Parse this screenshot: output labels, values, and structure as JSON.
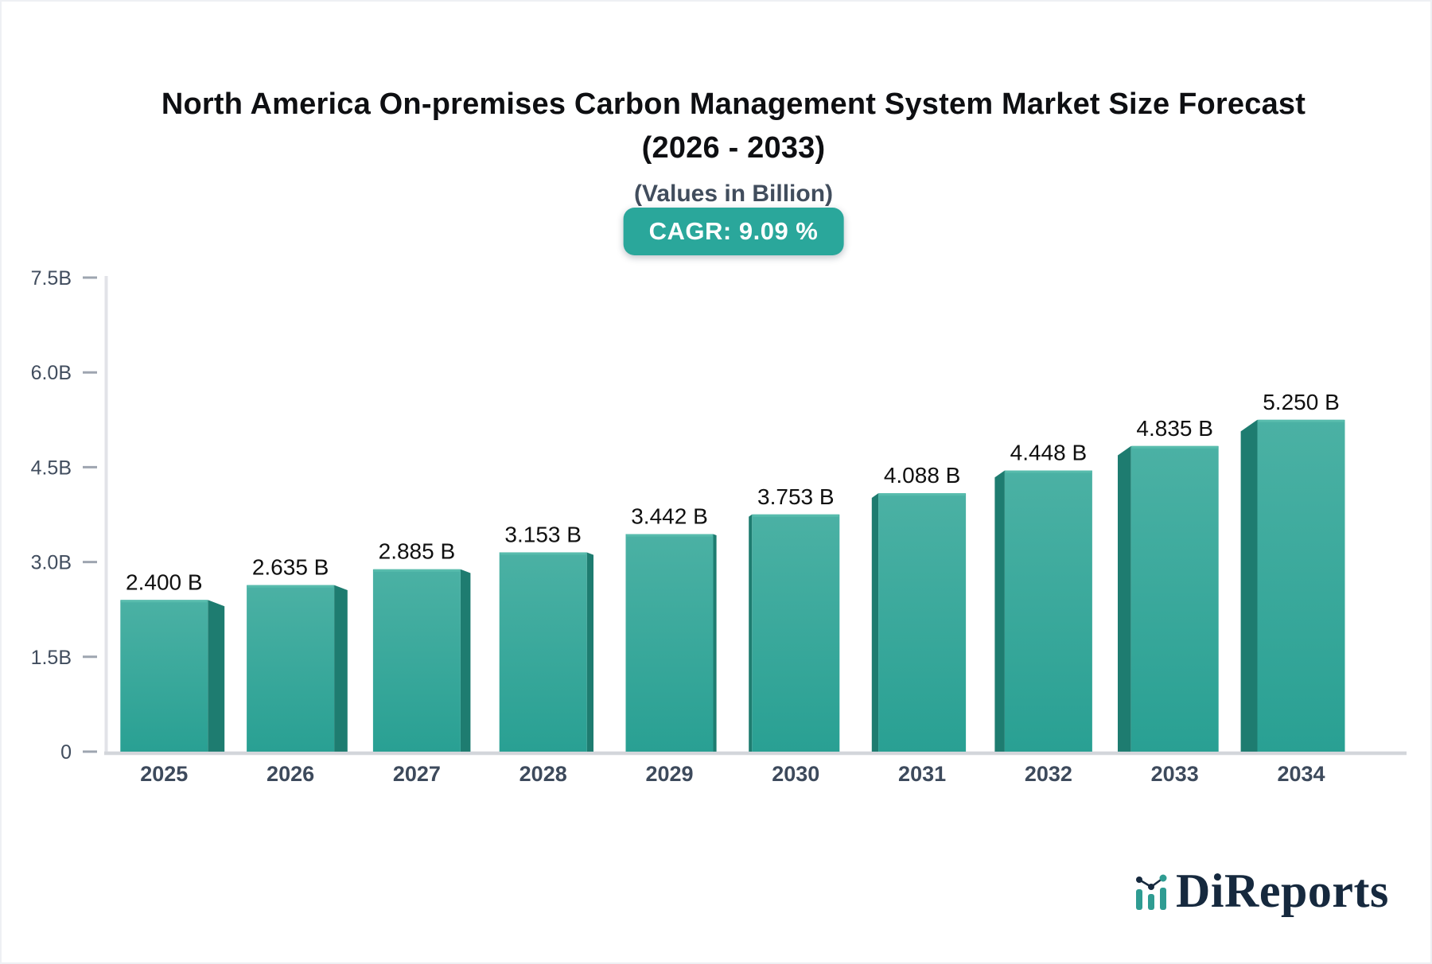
{
  "header": {
    "title_line1": "North America On-premises Carbon Management System Market Size Forecast",
    "title_line2": "(2026 - 2033)",
    "subtitle": "(Values in Billion)",
    "cagr_badge": "CAGR: 9.09 %"
  },
  "chart_data": {
    "type": "bar",
    "title": "North America On-premises Carbon Management System Market Size Forecast (2026 - 2033)",
    "subtitle": "(Values in Billion)",
    "categories": [
      "2025",
      "2026",
      "2027",
      "2028",
      "2029",
      "2030",
      "2031",
      "2032",
      "2033",
      "2034"
    ],
    "values": [
      2.4,
      2.635,
      2.885,
      3.153,
      3.442,
      3.753,
      4.088,
      4.448,
      4.835,
      5.25
    ],
    "value_labels": [
      "2.400 B",
      "2.635 B",
      "2.885 B",
      "3.153 B",
      "3.442 B",
      "3.753 B",
      "4.088 B",
      "4.448 B",
      "4.835 B",
      "5.250 B"
    ],
    "xlabel": "",
    "ylabel": "",
    "ylim": [
      0,
      7.5
    ],
    "yticks": [
      {
        "value": 0,
        "label": "0"
      },
      {
        "value": 1.5,
        "label": "1.5B"
      },
      {
        "value": 3.0,
        "label": "3.0B"
      },
      {
        "value": 4.5,
        "label": "4.5B"
      },
      {
        "value": 6.0,
        "label": "6.0B"
      },
      {
        "value": 7.5,
        "label": "7.5B"
      }
    ],
    "grid": "off",
    "legend": "none",
    "style": "3d-perspective-bars"
  },
  "colors": {
    "accent_teal": "#2aa79b",
    "bar_gradient_top": "#4bb1a4",
    "bar_gradient_bottom": "#29a093",
    "bar_side": "#1e7c70",
    "bar_top_highlight": "#58bcad",
    "axis_line": "#e2e3e8",
    "baseline": "#d3d6db",
    "tick_dash": "#9ea5b0",
    "tick_label": "#414d5e",
    "category_label": "#3d4a5c",
    "value_label": "#101010",
    "logo_navy": "#16293e",
    "badge_text": "#ffffff"
  },
  "logo": {
    "text": "DiReports",
    "icon": "mini-bar-chart-sparkline-icon"
  }
}
